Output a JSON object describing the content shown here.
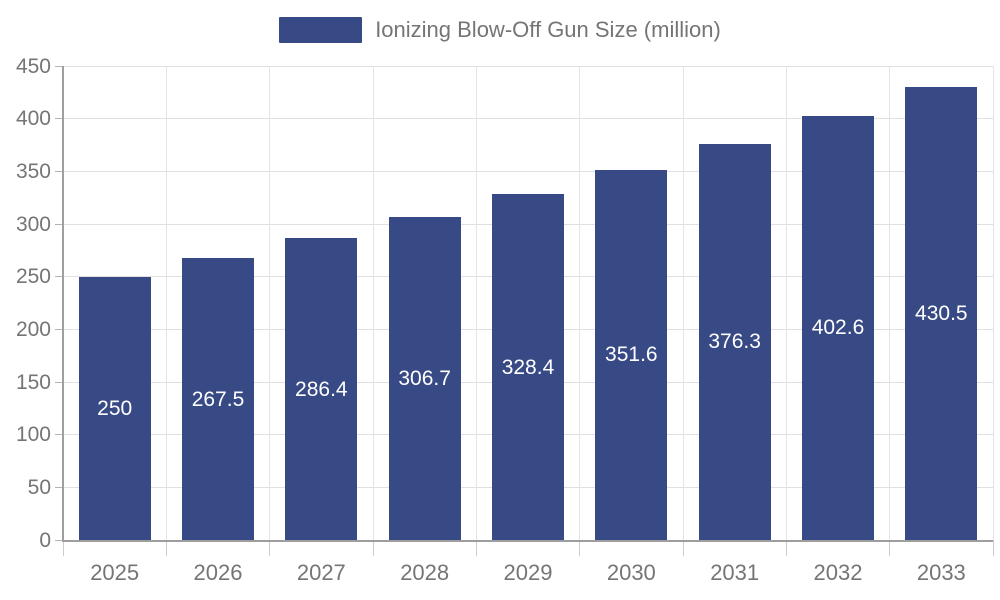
{
  "legend": {
    "label": "Ionizing Blow-Off Gun Size (million)"
  },
  "colors": {
    "bar": "#384a85",
    "axis": "#9e9e9e",
    "grid": "#e0e0e0",
    "text": "#757575",
    "bar_label": "#ffffff"
  },
  "chart_data": {
    "type": "bar",
    "title": "",
    "series_name": "Ionizing Blow-Off Gun Size (million)",
    "categories": [
      "2025",
      "2026",
      "2027",
      "2028",
      "2029",
      "2030",
      "2031",
      "2032",
      "2033"
    ],
    "values": [
      250,
      267.5,
      286.4,
      306.7,
      328.4,
      351.6,
      376.3,
      402.6,
      430.5
    ],
    "value_labels": [
      "250",
      "267.5",
      "286.4",
      "306.7",
      "328.4",
      "351.6",
      "376.3",
      "402.6",
      "430.5"
    ],
    "xlabel": "",
    "ylabel": "",
    "ylim": [
      0,
      450
    ],
    "yticks": [
      0,
      50,
      100,
      150,
      200,
      250,
      300,
      350,
      400,
      450
    ],
    "grid": true,
    "legend_position": "top"
  }
}
